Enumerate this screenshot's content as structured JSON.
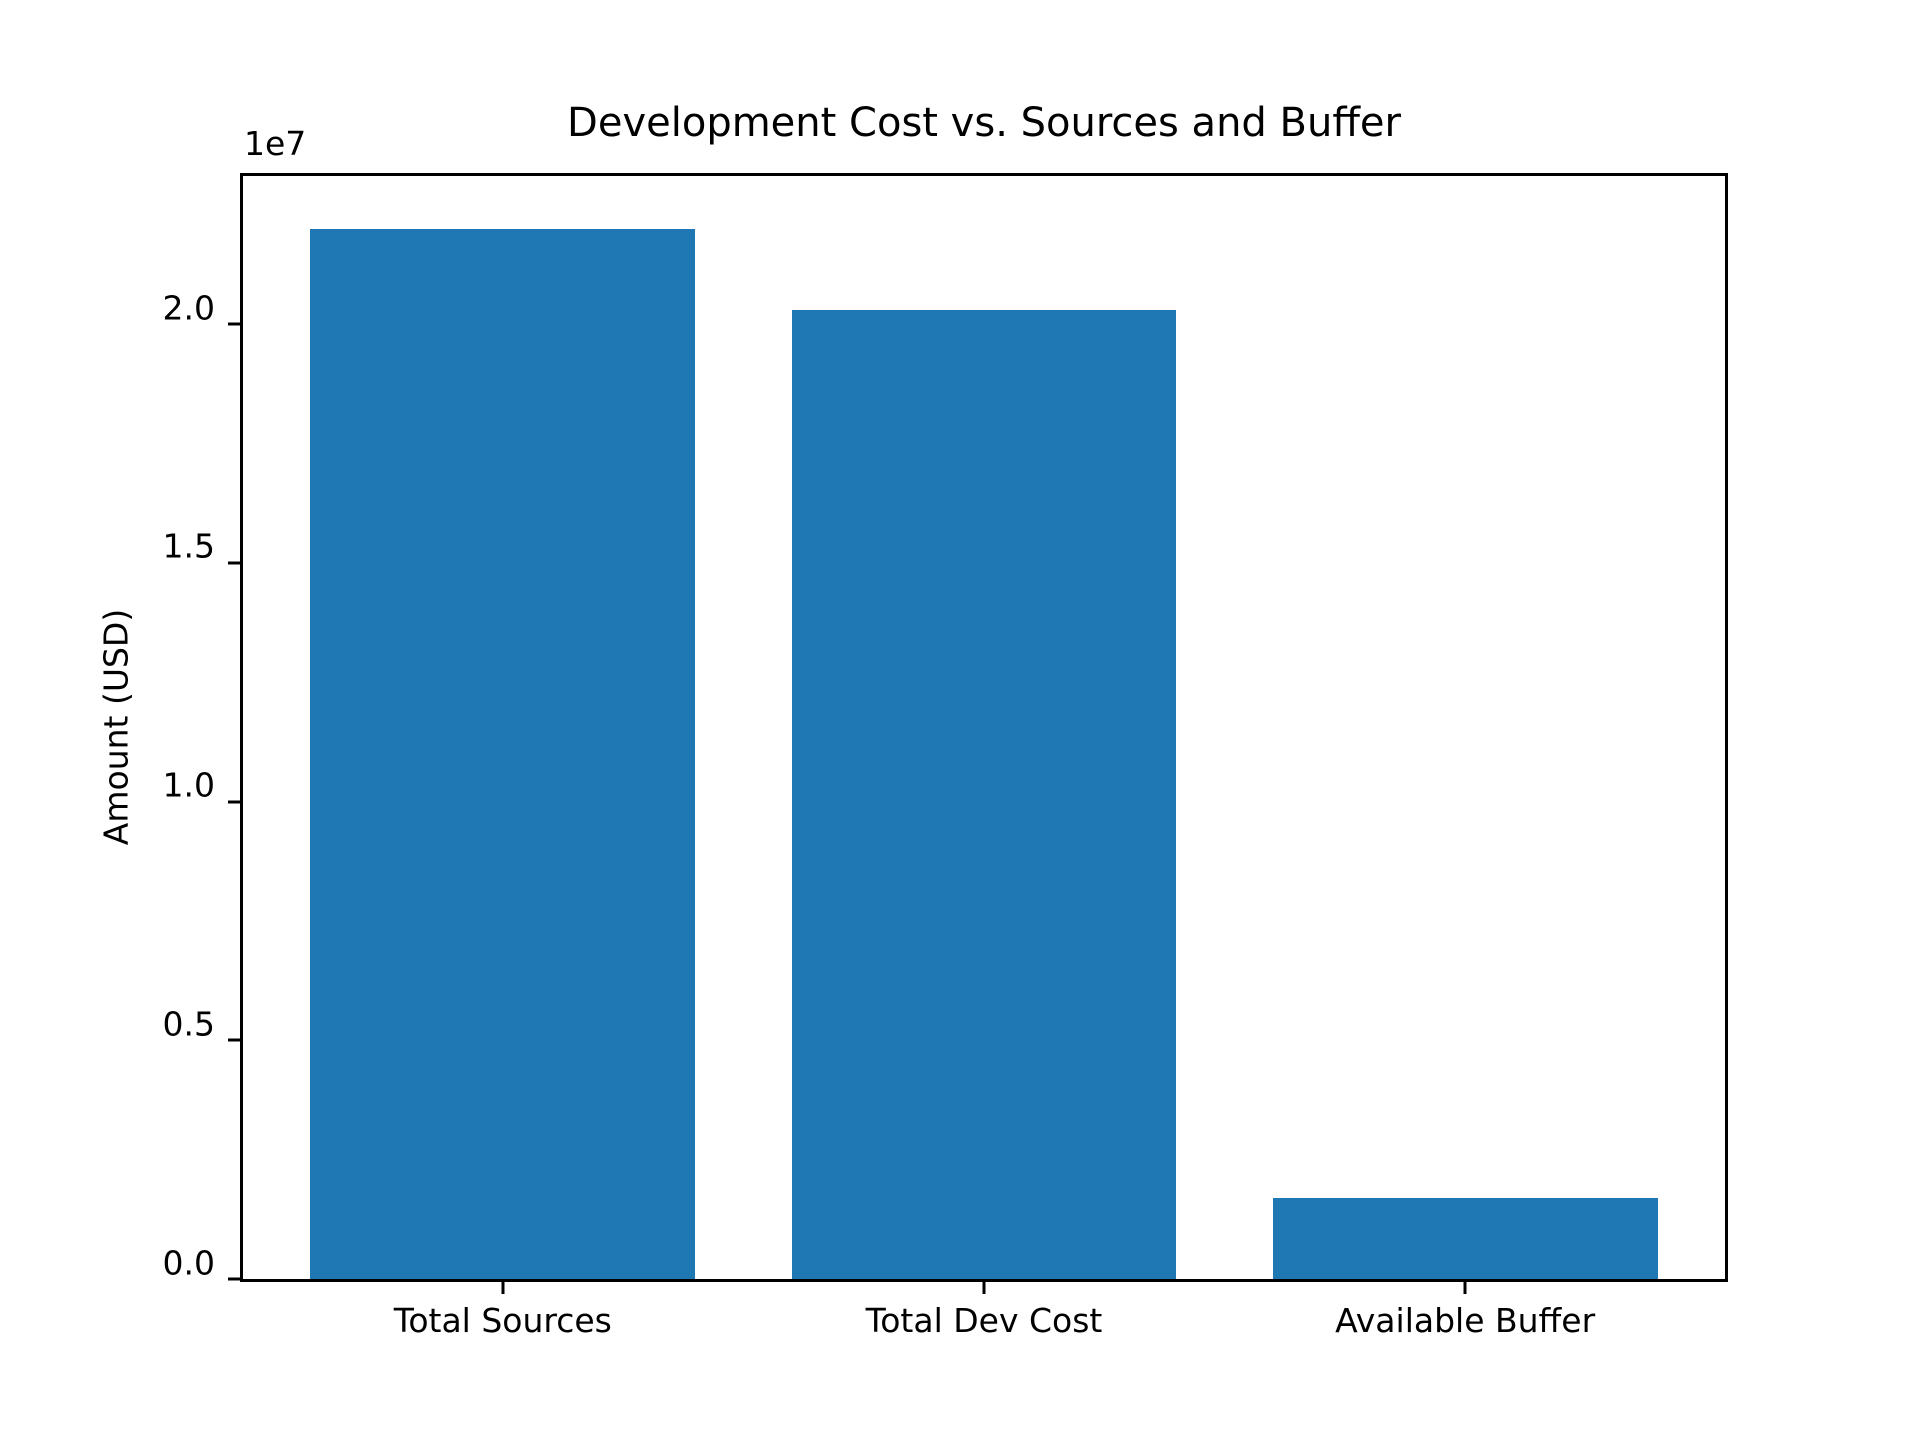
{
  "figure": {
    "title": "Development Cost vs. Sources and Buffer",
    "ylabel": "Amount (USD)",
    "offset_text": "1e7"
  },
  "chart_data": {
    "type": "bar",
    "categories": [
      "Total Sources",
      "Total Dev Cost",
      "Available Buffer"
    ],
    "values": [
      22000000,
      20300000,
      1700000
    ],
    "title": "Development Cost vs. Sources and Buffer",
    "xlabel": "",
    "ylabel": "Amount (USD)",
    "ylim": [
      0,
      23100000
    ],
    "xlim": [
      -0.54,
      2.54
    ],
    "yticks": {
      "values": [
        0,
        5000000,
        10000000,
        15000000,
        20000000
      ],
      "labels": [
        "0.0",
        "0.5",
        "1.0",
        "1.5",
        "2.0"
      ]
    },
    "offset_text": "1e7",
    "bar_color": "#1f77b4",
    "bar_width_units": 0.8,
    "grid": false,
    "legend_position": "none"
  }
}
